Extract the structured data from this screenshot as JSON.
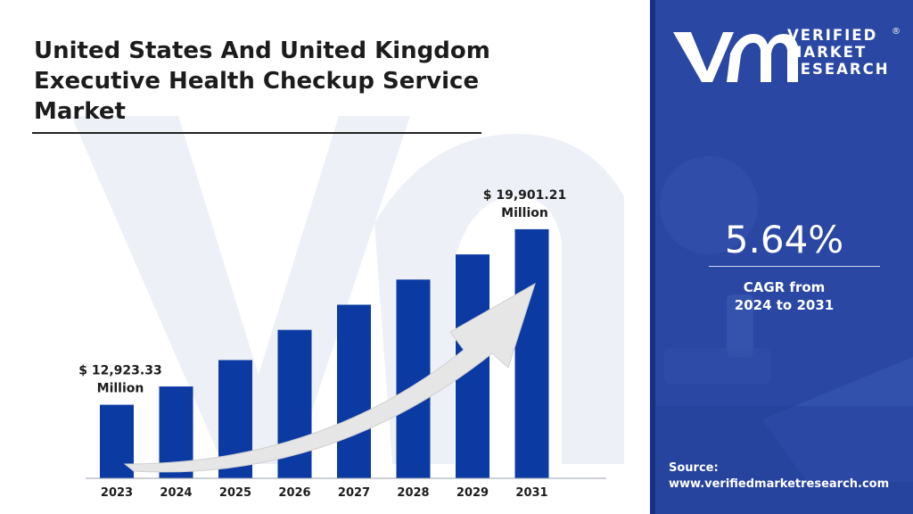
{
  "title": "United States And United Kingdom Executive Health Checkup Service Market",
  "brand": {
    "line1": "VERIFIED",
    "line2": "MARKET",
    "line3": "RESEARCH",
    "registered": "®"
  },
  "cagr": {
    "value": "5.64%",
    "label_line1": "CAGR from",
    "label_line2": "2024 to 2031"
  },
  "source": {
    "label": "Source:",
    "url": "www.verifiedmarketresearch.com"
  },
  "colors": {
    "bar": "#0b3aa3",
    "panel": "#24419c",
    "watermark": "#eef0f7",
    "arrow": "#e6e6e6"
  },
  "chart_data": {
    "type": "bar",
    "categories": [
      "2023",
      "2024",
      "2025",
      "2026",
      "2027",
      "2028",
      "2029",
      "2031"
    ],
    "values": [
      12923.33,
      13650,
      14700,
      15900,
      16900,
      17900,
      18900,
      19901.21
    ],
    "annotations": [
      {
        "category": "2023",
        "line1": "$ 12,923.33",
        "line2": "Million"
      },
      {
        "category": "2031",
        "line1": "$ 19,901.21",
        "line2": "Million"
      }
    ],
    "ylim": [
      10000,
      20500
    ],
    "grid": false,
    "trend_arrow": true
  }
}
